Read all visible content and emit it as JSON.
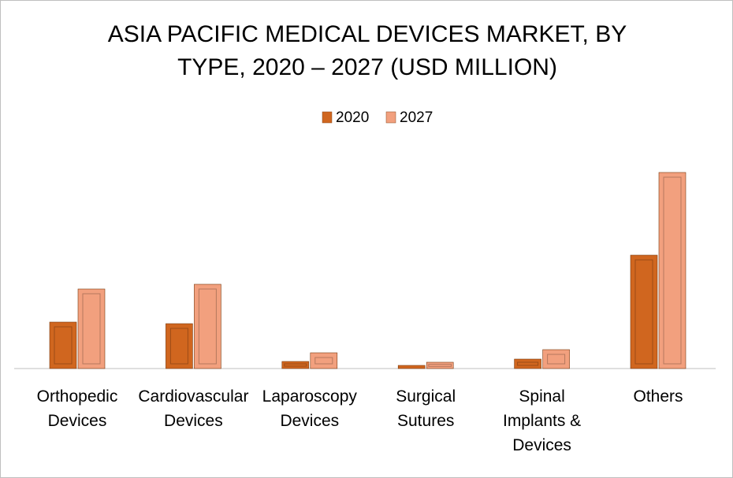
{
  "chart_data": {
    "type": "bar",
    "title": "ASIA PACIFIC MEDICAL DEVICES MARKET, BY TYPE, 2020 – 2027 (USD MILLION)",
    "categories": [
      "Orthopedic Devices",
      "Cardiovascular Devices",
      "Laparoscopy Devices",
      "Surgical Sutures",
      "Spinal Implants & Devices",
      "Others"
    ],
    "series": [
      {
        "name": "2020",
        "color": "#d0661f",
        "values": [
          59,
          57,
          9,
          4,
          12,
          144
        ]
      },
      {
        "name": "2027",
        "color": "#f2a07e",
        "values": [
          101,
          107,
          20,
          8,
          24,
          249
        ]
      }
    ],
    "legend": "top"
  }
}
